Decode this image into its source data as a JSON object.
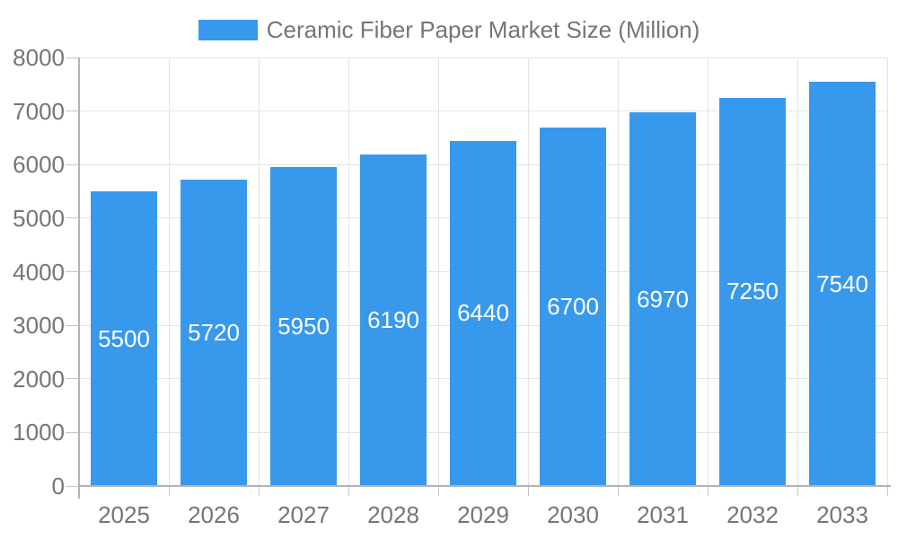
{
  "chart_data": {
    "type": "bar",
    "title": "Ceramic Fiber Paper Market Size (Million)",
    "legend_entries": [
      "Ceramic Fiber Paper Market Size (Million)"
    ],
    "legend_position": "top",
    "categories": [
      "2025",
      "2026",
      "2027",
      "2028",
      "2029",
      "2030",
      "2031",
      "2032",
      "2033"
    ],
    "values": [
      5500,
      5720,
      5950,
      6190,
      6440,
      6700,
      6970,
      7250,
      7540
    ],
    "xlabel": "",
    "ylabel": "",
    "ylim": [
      0,
      8000
    ],
    "ytick_step": 1000,
    "ytick_labels": [
      "0",
      "1000",
      "2000",
      "3000",
      "4000",
      "5000",
      "6000",
      "7000",
      "8000"
    ],
    "grid": true,
    "bar_labels_inside": true,
    "colors": {
      "bar": "#3899EC",
      "grid": "#E3E3E3",
      "axis": "#B3B3B3",
      "tick": "#C6C6C6",
      "text": "#757575",
      "bar_label": "#FFFFFF",
      "background": "#FFFFFF"
    }
  }
}
